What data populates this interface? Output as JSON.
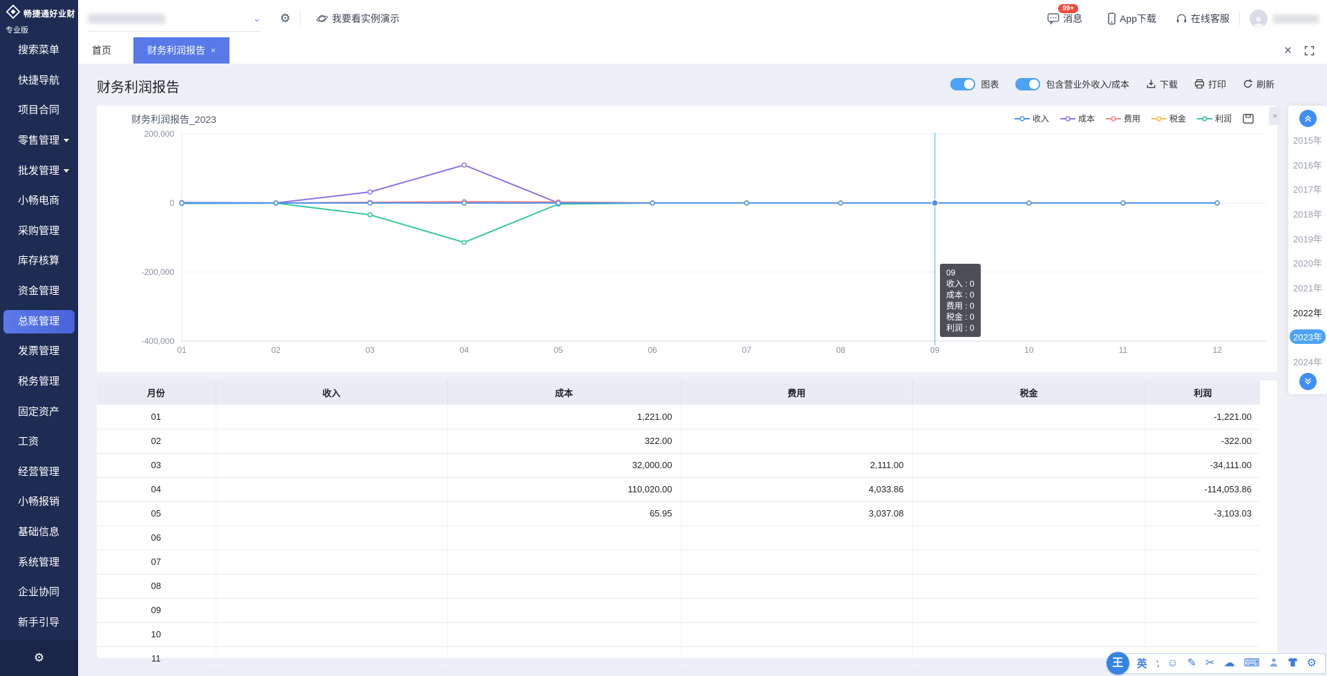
{
  "app": {
    "brand": "畅捷通好业财",
    "edition": "专业版"
  },
  "topbar": {
    "demo_link": "我要看实例演示",
    "messages": "消息",
    "messages_badge": "99+",
    "app_download": "App下载",
    "online_support": "在线客服"
  },
  "tabs": [
    {
      "label": "首页",
      "active": false
    },
    {
      "label": "财务利润报告",
      "active": true
    }
  ],
  "sidebar": {
    "items": [
      {
        "label": "搜索菜单"
      },
      {
        "label": "快捷导航"
      },
      {
        "label": "项目合同"
      },
      {
        "label": "零售管理",
        "arrow": true
      },
      {
        "label": "批发管理",
        "arrow": true
      },
      {
        "label": "小畅电商"
      },
      {
        "label": "采购管理"
      },
      {
        "label": "库存核算"
      },
      {
        "label": "资金管理"
      },
      {
        "label": "总账管理",
        "active": true
      },
      {
        "label": "发票管理"
      },
      {
        "label": "税务管理"
      },
      {
        "label": "固定资产"
      },
      {
        "label": "工资"
      },
      {
        "label": "经营管理"
      },
      {
        "label": "小畅报销"
      },
      {
        "label": "基础信息"
      },
      {
        "label": "系统管理"
      },
      {
        "label": "企业协同"
      },
      {
        "label": "新手引导"
      }
    ]
  },
  "page": {
    "title": "财务利润报告",
    "toggle_chart": "图表",
    "toggle_include": "包含营业外收入/成本",
    "download": "下载",
    "print": "打印",
    "refresh": "刷新"
  },
  "chart_data": {
    "type": "line",
    "title": "财务利润报告_2023",
    "categories": [
      "01",
      "02",
      "03",
      "04",
      "05",
      "06",
      "07",
      "08",
      "09",
      "10",
      "11",
      "12"
    ],
    "series": [
      {
        "name": "收入",
        "color": "#4e93ea",
        "values": [
          0,
          0,
          0,
          0,
          0,
          0,
          0,
          0,
          0,
          0,
          0,
          0
        ]
      },
      {
        "name": "成本",
        "color": "#8d74e8",
        "values": [
          1221,
          322,
          32000,
          110020,
          65.95,
          0,
          0,
          0,
          0,
          0,
          0,
          0
        ]
      },
      {
        "name": "费用",
        "color": "#f08a8a",
        "values": [
          0,
          0,
          2111,
          4033.86,
          3037.08,
          0,
          0,
          0,
          0,
          0,
          0,
          0
        ]
      },
      {
        "name": "税金",
        "color": "#f3c24b",
        "values": [
          0,
          0,
          0,
          0,
          0,
          0,
          0,
          0,
          0,
          0,
          0,
          0
        ]
      },
      {
        "name": "利润",
        "color": "#35c79a",
        "values": [
          -1221,
          -322,
          -34111,
          -114053.86,
          -3103.03,
          0,
          0,
          0,
          0,
          0,
          0,
          0
        ]
      }
    ],
    "ylim": [
      -400000,
      200000
    ],
    "ytick_values": [
      200000,
      0,
      -200000,
      -400000
    ],
    "ytick_labels": [
      "200,000",
      "0",
      "-200,000",
      "-400,000"
    ],
    "grid": true,
    "legend_position": "top-right",
    "highlight_month": "09"
  },
  "tooltip": {
    "title": "09",
    "lines": [
      "收入 : 0",
      "成本 : 0",
      "费用 : 0",
      "税金 : 0",
      "利润 : 0"
    ]
  },
  "year_panel": {
    "items": [
      "2015年",
      "2016年",
      "2017年",
      "2018年",
      "2019年",
      "2020年",
      "2021年",
      "2022年",
      "2023年",
      "2024年"
    ],
    "selected": "2023年",
    "emphasized": "2022年"
  },
  "table": {
    "headers": [
      "月份",
      "收入",
      "成本",
      "费用",
      "税金",
      "利润"
    ],
    "rows": [
      [
        "01",
        "",
        "1,221.00",
        "",
        "",
        "-1,221.00"
      ],
      [
        "02",
        "",
        "322.00",
        "",
        "",
        "-322.00"
      ],
      [
        "03",
        "",
        "32,000.00",
        "2,111.00",
        "",
        "-34,111.00"
      ],
      [
        "04",
        "",
        "110,020.00",
        "4,033.86",
        "",
        "-114,053.86"
      ],
      [
        "05",
        "",
        "65.95",
        "3,037.08",
        "",
        "-3,103.03"
      ],
      [
        "06",
        "",
        "",
        "",
        "",
        ""
      ],
      [
        "07",
        "",
        "",
        "",
        "",
        ""
      ],
      [
        "08",
        "",
        "",
        "",
        "",
        ""
      ],
      [
        "09",
        "",
        "",
        "",
        "",
        ""
      ],
      [
        "10",
        "",
        "",
        "",
        "",
        ""
      ],
      [
        "11",
        "",
        "",
        "",
        "",
        ""
      ]
    ]
  },
  "taskbar": {
    "ime_logo": "王",
    "lang": "英",
    "punct": "’,",
    "emoji": "☺",
    "pencil": "✎",
    "scissors": "✂",
    "cloud": "☁",
    "keyboard": "⌨",
    "gear": "⚙"
  }
}
